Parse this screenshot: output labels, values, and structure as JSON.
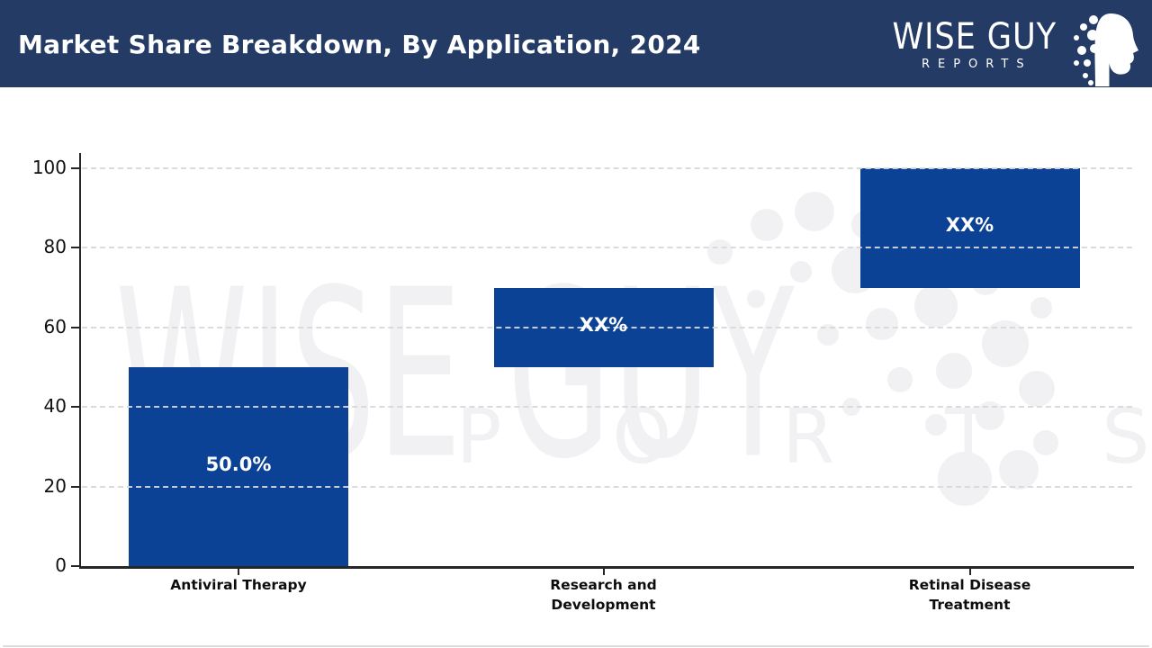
{
  "header": {
    "title": "Market Share Breakdown, By Application, 2024",
    "logo": {
      "line1": "WISE GUY",
      "line2": "REPORTS"
    }
  },
  "watermark": {
    "line1": "WISE GUY",
    "line2": "R E P O R T S"
  },
  "colors": {
    "header_bg": "#243b66",
    "bar_blue": "#0b4296",
    "grid": "#d8d8d8",
    "axis": "#262626",
    "watermark": "#f1f1f4"
  },
  "chart_data": {
    "type": "bar",
    "variant": "floating-segment-waterfall",
    "title": "Market Share Breakdown, By Application, 2024",
    "categories": [
      "Antiviral Therapy",
      "Research and\nDevelopment",
      "Retinal Disease\nTreatment"
    ],
    "bars": [
      {
        "category": "Antiviral Therapy",
        "start": 0,
        "end": 50,
        "label": "50.0%"
      },
      {
        "category": "Research and Development",
        "start": 50,
        "end": 70,
        "label": "XX%"
      },
      {
        "category": "Retinal Disease Treatment",
        "start": 70,
        "end": 100,
        "label": "XX%"
      }
    ],
    "ylim": [
      0,
      100
    ],
    "yticks": [
      0,
      20,
      40,
      60,
      80,
      100
    ],
    "grid": {
      "horizontal": true,
      "style": "dashed",
      "drawn_over_bars": true
    },
    "legend": null,
    "xlabel": "",
    "ylabel": ""
  }
}
